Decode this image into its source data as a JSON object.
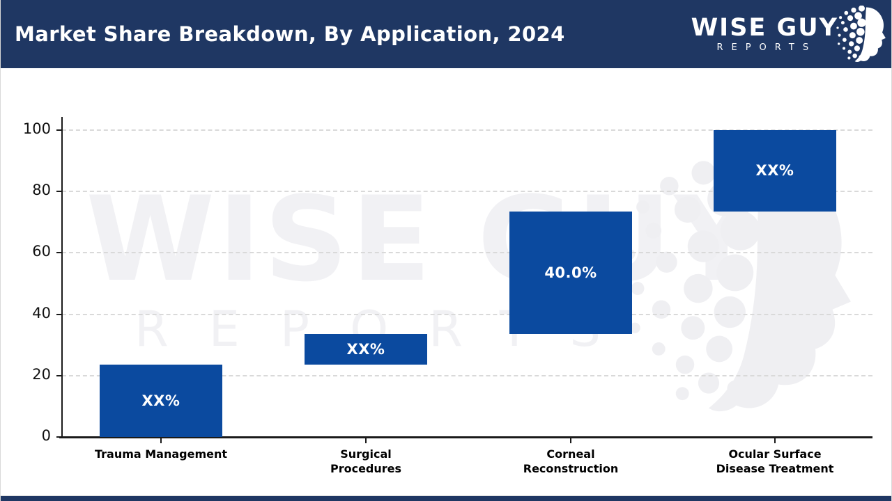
{
  "header": {
    "title": "Market Share Breakdown, By Application, 2024",
    "logo": {
      "brand": "WISE GUY",
      "sub": "REPORTS"
    }
  },
  "watermark": {
    "brand": "WISE GUY",
    "sub": "REPORTS"
  },
  "colors": {
    "header_bg": "#1f3763",
    "footer_bg": "#1f3763",
    "bar": "#0b4a9f",
    "grid": "#d9d9d9",
    "axis": "#1a1a1a",
    "tick_text": "#111111",
    "bar_label_text": "#ffffff",
    "watermark": "#f1f1f4"
  },
  "chart_data": {
    "type": "bar",
    "variant": "waterfall",
    "title": "Market Share Breakdown, By Application, 2024",
    "xlabel": "",
    "ylabel": "",
    "ylim": [
      0,
      100
    ],
    "yticks": [
      0,
      20,
      40,
      60,
      80,
      100
    ],
    "grid": "horizontal dashed",
    "legend": "none",
    "categories": [
      [
        "Trauma Management"
      ],
      [
        "Surgical",
        "Procedures"
      ],
      [
        "Corneal",
        "Reconstruction"
      ],
      [
        "Ocular Surface",
        "Disease Treatment"
      ]
    ],
    "segments": [
      {
        "category": "Trauma Management",
        "start": 0,
        "end": 23.5,
        "label": "XX%"
      },
      {
        "category": "Surgical Procedures",
        "start": 23.5,
        "end": 33.5,
        "label": "XX%"
      },
      {
        "category": "Corneal Reconstruction",
        "start": 33.5,
        "end": 73.5,
        "label": "40.0%"
      },
      {
        "category": "Ocular Surface Disease Treatment",
        "start": 73.5,
        "end": 100,
        "label": "XX%"
      }
    ]
  }
}
